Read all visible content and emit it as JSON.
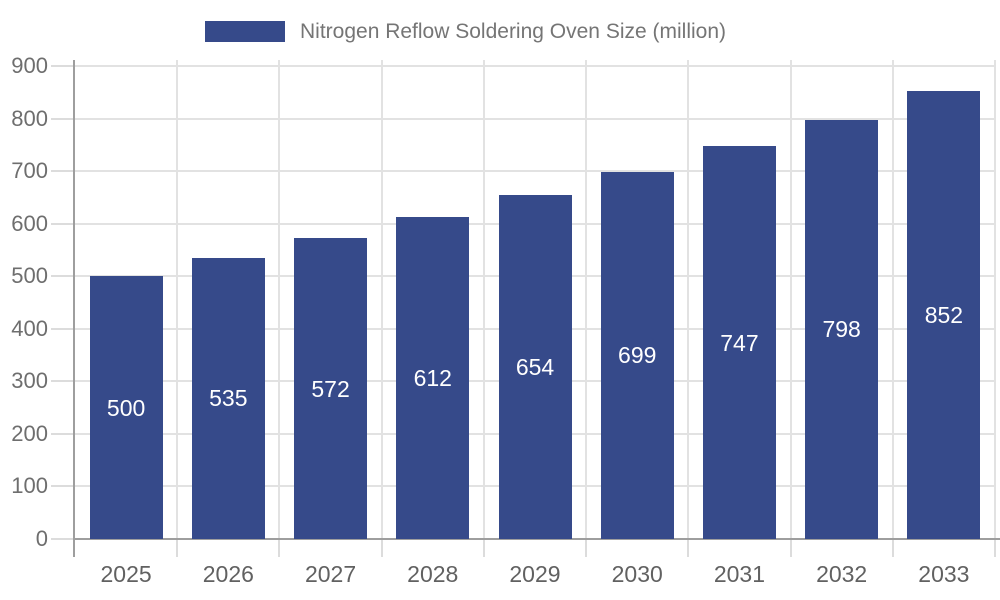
{
  "chart_data": {
    "type": "bar",
    "title": "Nitrogen Reflow Soldering Oven Size (million)",
    "legend": {
      "label": "Nitrogen Reflow Soldering Oven Size (million)",
      "position": "top-center"
    },
    "categories": [
      "2025",
      "2026",
      "2027",
      "2028",
      "2029",
      "2030",
      "2031",
      "2032",
      "2033"
    ],
    "values": [
      500,
      535,
      572,
      612,
      654,
      699,
      747,
      798,
      852
    ],
    "bar_value_labels": [
      "500",
      "535",
      "572",
      "612",
      "654",
      "699",
      "747",
      "798",
      "852"
    ],
    "xlabel": "",
    "ylabel": "",
    "ylim": [
      0,
      900
    ],
    "ytick_interval": 100,
    "ytick_labels": [
      "0",
      "100",
      "200",
      "300",
      "400",
      "500",
      "600",
      "700",
      "800",
      "900"
    ],
    "grid": "horizontal-and-vertical",
    "colors": {
      "bar": "#364A8A",
      "bar_value_text": "#ffffff",
      "axis_line": "#9e9e9e",
      "gridline": "#e2e2e2",
      "tick": "#dcdcdc",
      "y_tick_label": "#6e6e6e",
      "x_tick_label": "#616161",
      "legend_text": "#757575",
      "background": "#ffffff"
    }
  }
}
